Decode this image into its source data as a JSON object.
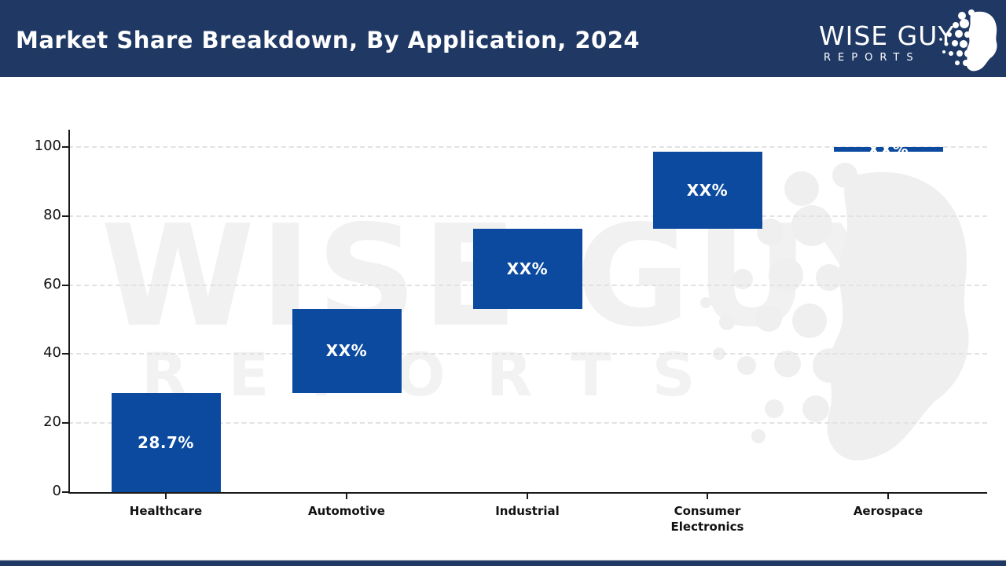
{
  "header": {
    "title": "Market Share Breakdown, By Application, 2024",
    "logo_line1": "WISE GUY",
    "logo_line2": "REPORTS",
    "bg_color": "#1f3864"
  },
  "watermark": {
    "line1": "WISE GUY",
    "line2": "REPORTS"
  },
  "chart_data": {
    "type": "bar",
    "subtype": "waterfall-stacked-breakdown",
    "title": "Market Share Breakdown, By Application, 2024",
    "categories": [
      "Healthcare",
      "Automotive",
      "Industrial",
      "Consumer Electronics",
      "Aerospace"
    ],
    "segments": [
      {
        "category": "Healthcare",
        "label": "28.7%",
        "start": 0,
        "end": 28.7,
        "value": 28.7
      },
      {
        "category": "Automotive",
        "label": "XX%",
        "start": 28.7,
        "end": 53.1,
        "value": 24.4
      },
      {
        "category": "Industrial",
        "label": "XX%",
        "start": 53.1,
        "end": 76.3,
        "value": 23.2
      },
      {
        "category": "Consumer Electronics",
        "label": "XX%",
        "start": 76.3,
        "end": 98.7,
        "value": 22.4
      },
      {
        "category": "Aerospace",
        "label": "XX%",
        "start": 98.7,
        "end": 100,
        "value": 1.3
      }
    ],
    "xlabel": "",
    "ylabel": "",
    "ylim": [
      0,
      100
    ],
    "yticks": [
      0,
      20,
      40,
      60,
      80,
      100
    ],
    "grid": "horizontal-dashed",
    "legend": "none",
    "bar_color": "#0b4a9e",
    "label_color": "#ffffff"
  }
}
